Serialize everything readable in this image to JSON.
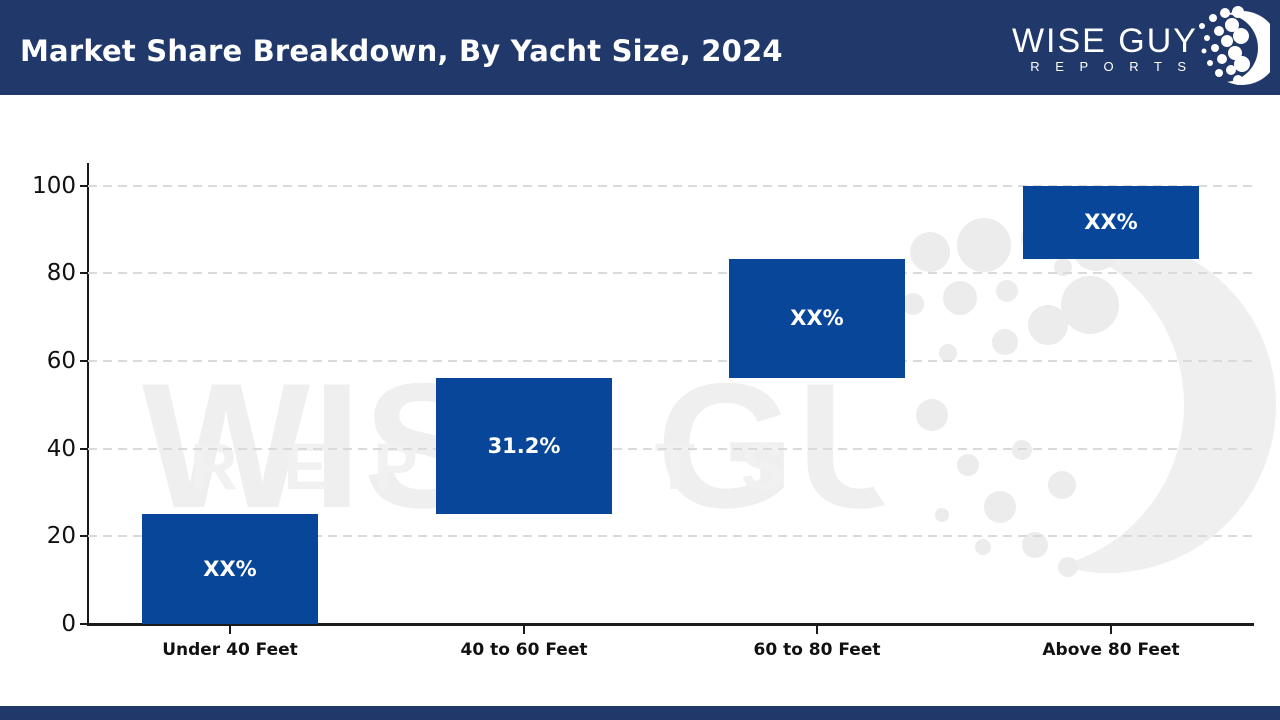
{
  "header": {
    "title": "Market Share Breakdown, By Yacht Size, 2024",
    "logo": {
      "wordmark": "WISE GUY",
      "subtext": "R E P O R T S"
    }
  },
  "watermark": {
    "wordmark": "WISE GUY",
    "subtext": "REPORTS"
  },
  "footer": {
    "text": ""
  },
  "colors": {
    "header_bg": "#21386A",
    "bar": "#084699",
    "grid": "#DADADA",
    "axis": "#1A1A1A",
    "bar_label": "#FFFFFF",
    "watermark": "#EFEFEF"
  },
  "chart_data": {
    "type": "bar",
    "variant": "floating-segment-waterfall",
    "title": "Market Share Breakdown, By Yacht Size, 2024",
    "xlabel": "",
    "ylabel": "",
    "categories": [
      "Under 40 Feet",
      "40 to 60 Feet",
      "60 to 80 Feet",
      "Above 80 Feet"
    ],
    "segments": [
      {
        "category": "Under 40 Feet",
        "start": 0,
        "end": 25.0,
        "height": 25.0,
        "label": "XX%"
      },
      {
        "category": "40 to 60 Feet",
        "start": 25.0,
        "end": 56.2,
        "height": 31.2,
        "label": "31.2%"
      },
      {
        "category": "60 to 80 Feet",
        "start": 56.2,
        "end": 83.2,
        "height": 27.0,
        "label": "XX%"
      },
      {
        "category": "Above 80 Feet",
        "start": 83.2,
        "end": 100.0,
        "height": 16.8,
        "label": "XX%"
      }
    ],
    "y_ticks": [
      0,
      20,
      40,
      60,
      80,
      100
    ],
    "ylim": [
      0,
      105
    ],
    "grid": "horizontal-dashed",
    "legend": "none"
  }
}
